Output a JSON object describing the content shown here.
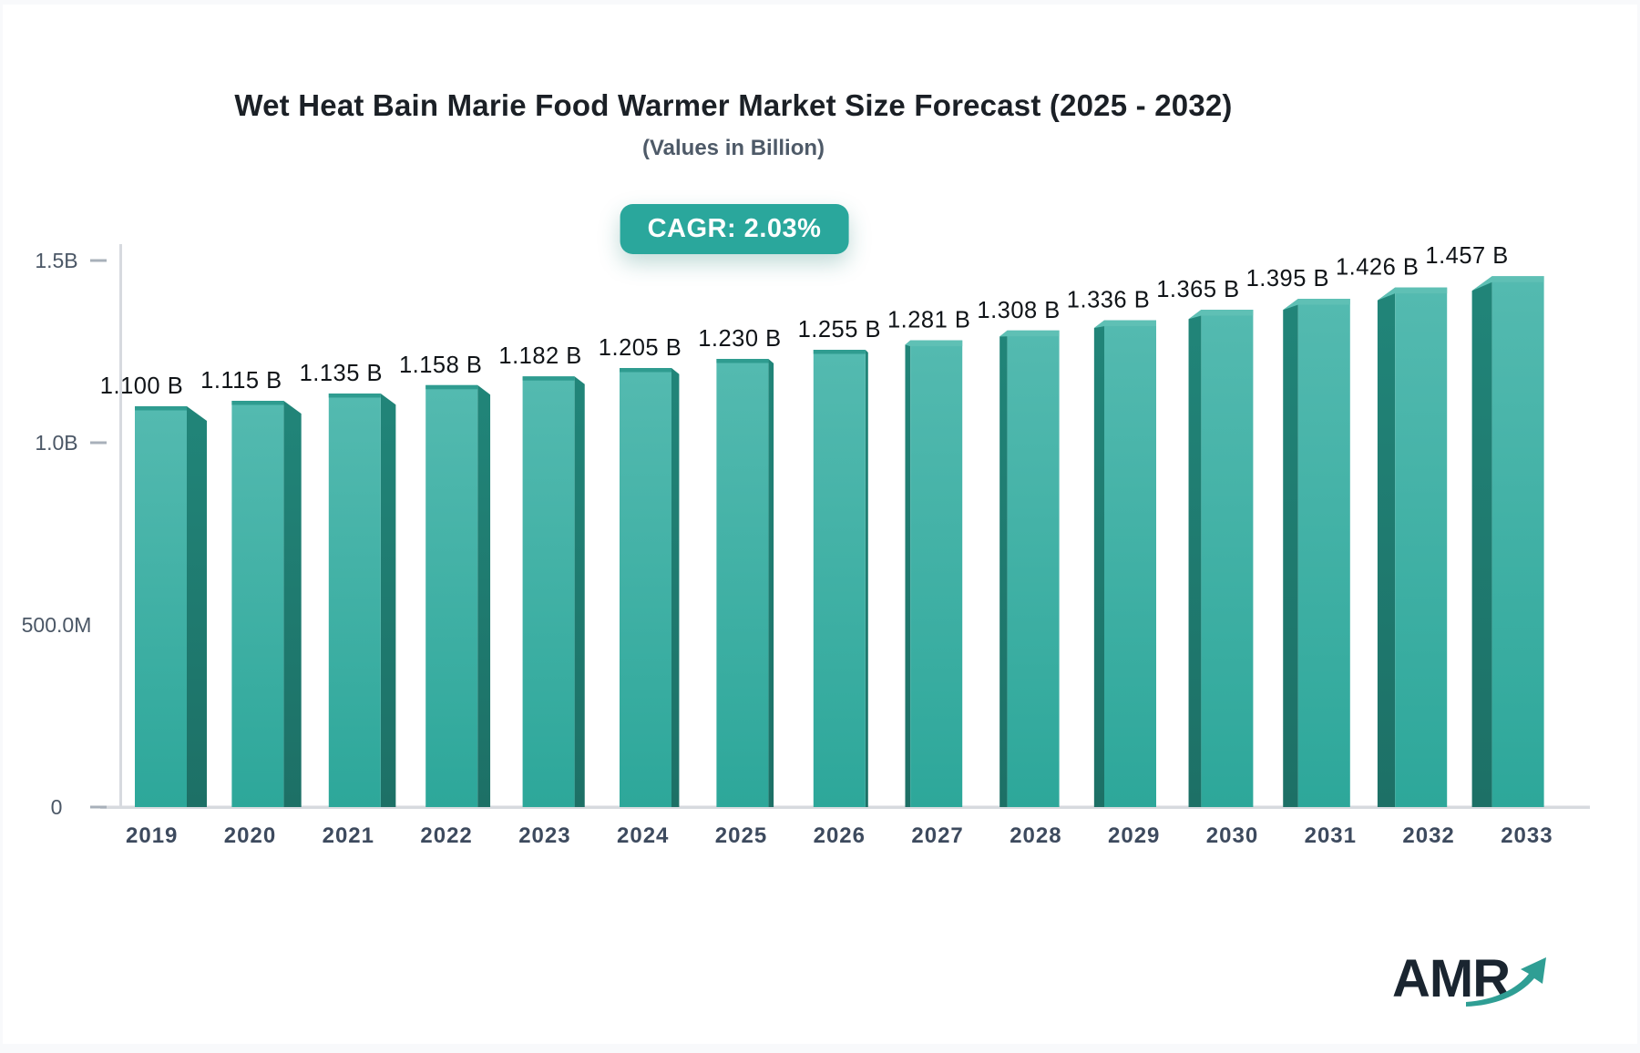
{
  "page": {
    "background": "#f8f9fb",
    "card_background": "#ffffff"
  },
  "header": {
    "title": "Wet Heat Bain Marie Food Warmer Market Size Forecast (2025 - 2032)",
    "subtitle": "(Values in Billion)"
  },
  "badge": {
    "label": "CAGR: 2.03%",
    "background": "#2aa79c",
    "text_color": "#ffffff"
  },
  "logo": {
    "text": "AMR",
    "arrow_icon": "growth-arrow-icon",
    "text_color": "#1a2530",
    "arrow_color": "#2f9e94"
  },
  "chart_data": {
    "type": "bar",
    "title": "Wet Heat Bain Marie Food Warmer Market Size Forecast (2025 - 2032)",
    "subtitle": "(Values in Billion)",
    "categories": [
      "2019",
      "2020",
      "2021",
      "2022",
      "2023",
      "2024",
      "2025",
      "2026",
      "2027",
      "2028",
      "2029",
      "2030",
      "2031",
      "2032",
      "2033"
    ],
    "values": [
      1.1,
      1.115,
      1.135,
      1.158,
      1.182,
      1.205,
      1.23,
      1.255,
      1.281,
      1.308,
      1.336,
      1.365,
      1.395,
      1.426,
      1.457
    ],
    "value_labels": [
      "1.100 B",
      "1.115 B",
      "1.135 B",
      "1.158 B",
      "1.182 B",
      "1.205 B",
      "1.230 B",
      "1.255 B",
      "1.281 B",
      "1.308 B",
      "1.336 B",
      "1.365 B",
      "1.395 B",
      "1.426 B",
      "1.457 B"
    ],
    "unit": "Billion",
    "xlabel": "",
    "ylabel": "",
    "ylim": [
      0,
      1.5
    ],
    "y_ticks": [
      {
        "label": "1.5B",
        "value": 1.5,
        "dash": true
      },
      {
        "label": "1.0B",
        "value": 1.0,
        "dash": true
      },
      {
        "label": "500.0M",
        "value": 0.5,
        "dash": false
      },
      {
        "label": "0",
        "value": 0.0,
        "dash": true
      }
    ],
    "grid": false,
    "legend": false,
    "bar_style": "3d",
    "colors": {
      "bar_front_top": "#54bab0",
      "bar_front_bottom": "#2da79a",
      "bar_side_top": "#218579",
      "bar_side_bottom": "#1d7066",
      "bar_top_strip_left": "#2f9c90",
      "bar_top_strip_right": "#5fc0b5",
      "axis": "#d7dadf",
      "tick_dash": "#a8b0ba",
      "x_label": "#3d4a5e",
      "y_label": "#4b5766",
      "value_label": "#101418"
    }
  }
}
